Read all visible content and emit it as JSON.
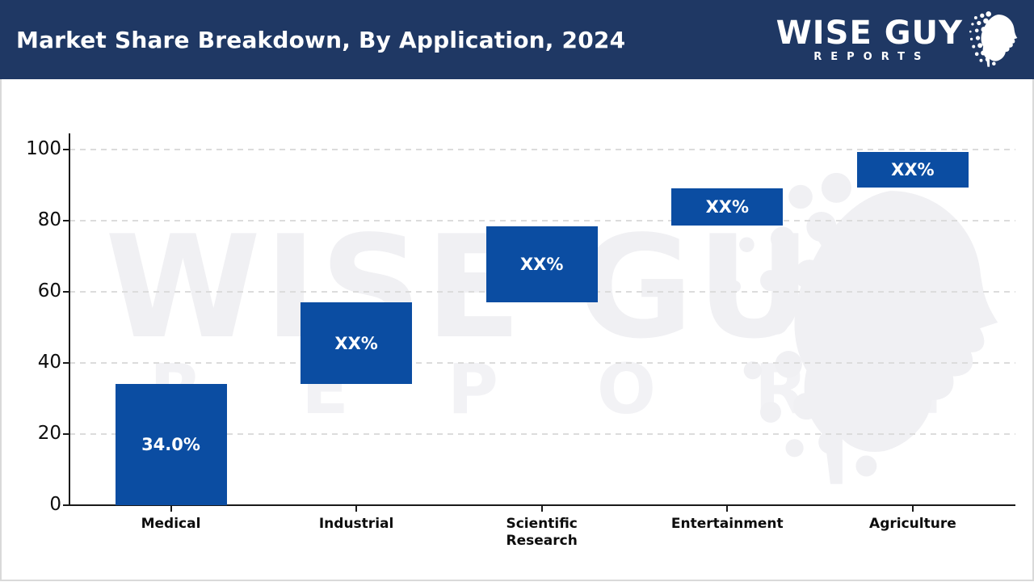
{
  "header": {
    "title": "Market Share Breakdown, By Application, 2024",
    "brand_line1": "WISE GUY",
    "brand_line2": "REPORTS",
    "bg_color": "#1f3864"
  },
  "watermark": {
    "line1": "WISE GUY",
    "line2": "R E P O R T S"
  },
  "chart_data": {
    "type": "bar",
    "subtype": "waterfall",
    "title": "Market Share Breakdown, By Application, 2024",
    "xlabel": "",
    "ylabel": "",
    "ylim": [
      0,
      104.5
    ],
    "grid": "dashed horizontal",
    "bar_color": "#0b4da2",
    "categories": [
      "Medical",
      "Industrial",
      "Scientific Research",
      "Entertainment",
      "Agriculture"
    ],
    "y_ticks": [
      0,
      20,
      40,
      60,
      80,
      100
    ],
    "bars": [
      {
        "category": "Medical",
        "start": 0,
        "end": 34,
        "label": "34.0%"
      },
      {
        "category": "Industrial",
        "start": 34,
        "end": 57,
        "label": "XX%"
      },
      {
        "category": "Scientific Research",
        "start": 57,
        "end": 78.4,
        "label": "XX%"
      },
      {
        "category": "Entertainment",
        "start": 78.6,
        "end": 89.1,
        "label": "XX%"
      },
      {
        "category": "Agriculture",
        "start": 89.2,
        "end": 99.3,
        "label": "XX%"
      }
    ]
  }
}
